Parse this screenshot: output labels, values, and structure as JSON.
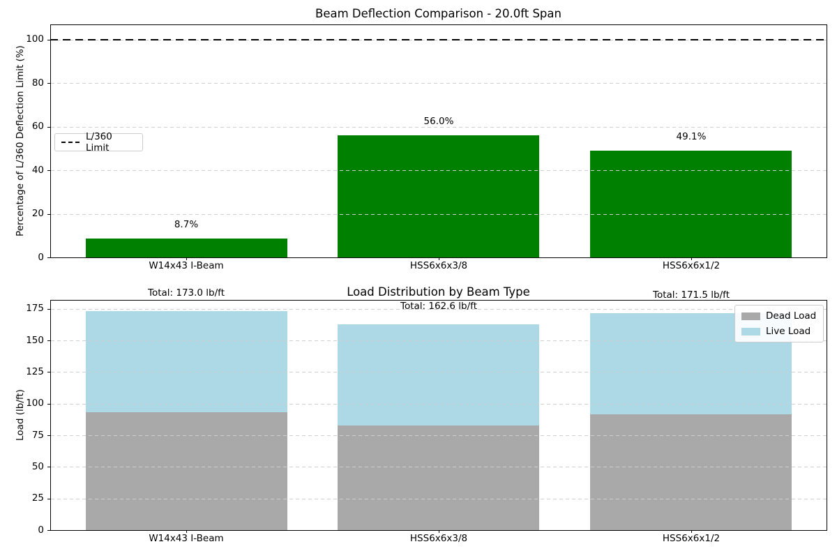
{
  "figure": {
    "background": "#ffffff",
    "grid_color": "#cfcfcf",
    "charts": [
      {
        "type": "bar",
        "title": "Beam Deflection Comparison - 20.0ft Span",
        "ylabel": "Percentage of L/360 Deflection Limit (%)",
        "categories": [
          "W14x43 I-Beam",
          "HSS6x6x3/8",
          "HSS6x6x1/2"
        ],
        "values": [
          8.7,
          56.0,
          49.1
        ],
        "bar_labels": [
          "8.7%",
          "56.0%",
          "49.1%"
        ],
        "bar_color": "#008000",
        "yticks": [
          0,
          20,
          40,
          60,
          80,
          100
        ],
        "ylim": [
          0,
          107
        ],
        "grid": "dashed horizontal",
        "limit_line": {
          "value": 100,
          "style": "dashed",
          "color": "#000000",
          "label": "L/360 Limit"
        },
        "legend": {
          "position": "center-left",
          "entries": [
            {
              "label": "L/360 Limit",
              "marker": "dashed-line",
              "color": "#000000"
            }
          ]
        }
      },
      {
        "type": "stacked-bar",
        "title": "Load Distribution by Beam Type",
        "ylabel": "Load (lb/ft)",
        "categories": [
          "W14x43 I-Beam",
          "HSS6x6x3/8",
          "HSS6x6x1/2"
        ],
        "series": [
          {
            "name": "Dead Load",
            "color": "#a9a9a9",
            "values": [
              93.0,
              82.6,
              91.5
            ]
          },
          {
            "name": "Live Load",
            "color": "#add8e6",
            "values": [
              80.0,
              80.0,
              80.0
            ]
          }
        ],
        "totals": [
          173.0,
          162.6,
          171.5
        ],
        "total_labels": [
          "Total: 173.0 lb/ft",
          "Total: 162.6 lb/ft",
          "Total: 171.5 lb/ft"
        ],
        "yticks": [
          0,
          25,
          50,
          75,
          100,
          125,
          150,
          175
        ],
        "ylim": [
          0,
          182
        ],
        "grid": "dashed horizontal",
        "legend": {
          "position": "upper-right",
          "entries": [
            {
              "label": "Dead Load",
              "marker": "patch",
              "color": "#a9a9a9"
            },
            {
              "label": "Live Load",
              "marker": "patch",
              "color": "#add8e6"
            }
          ]
        }
      }
    ]
  }
}
